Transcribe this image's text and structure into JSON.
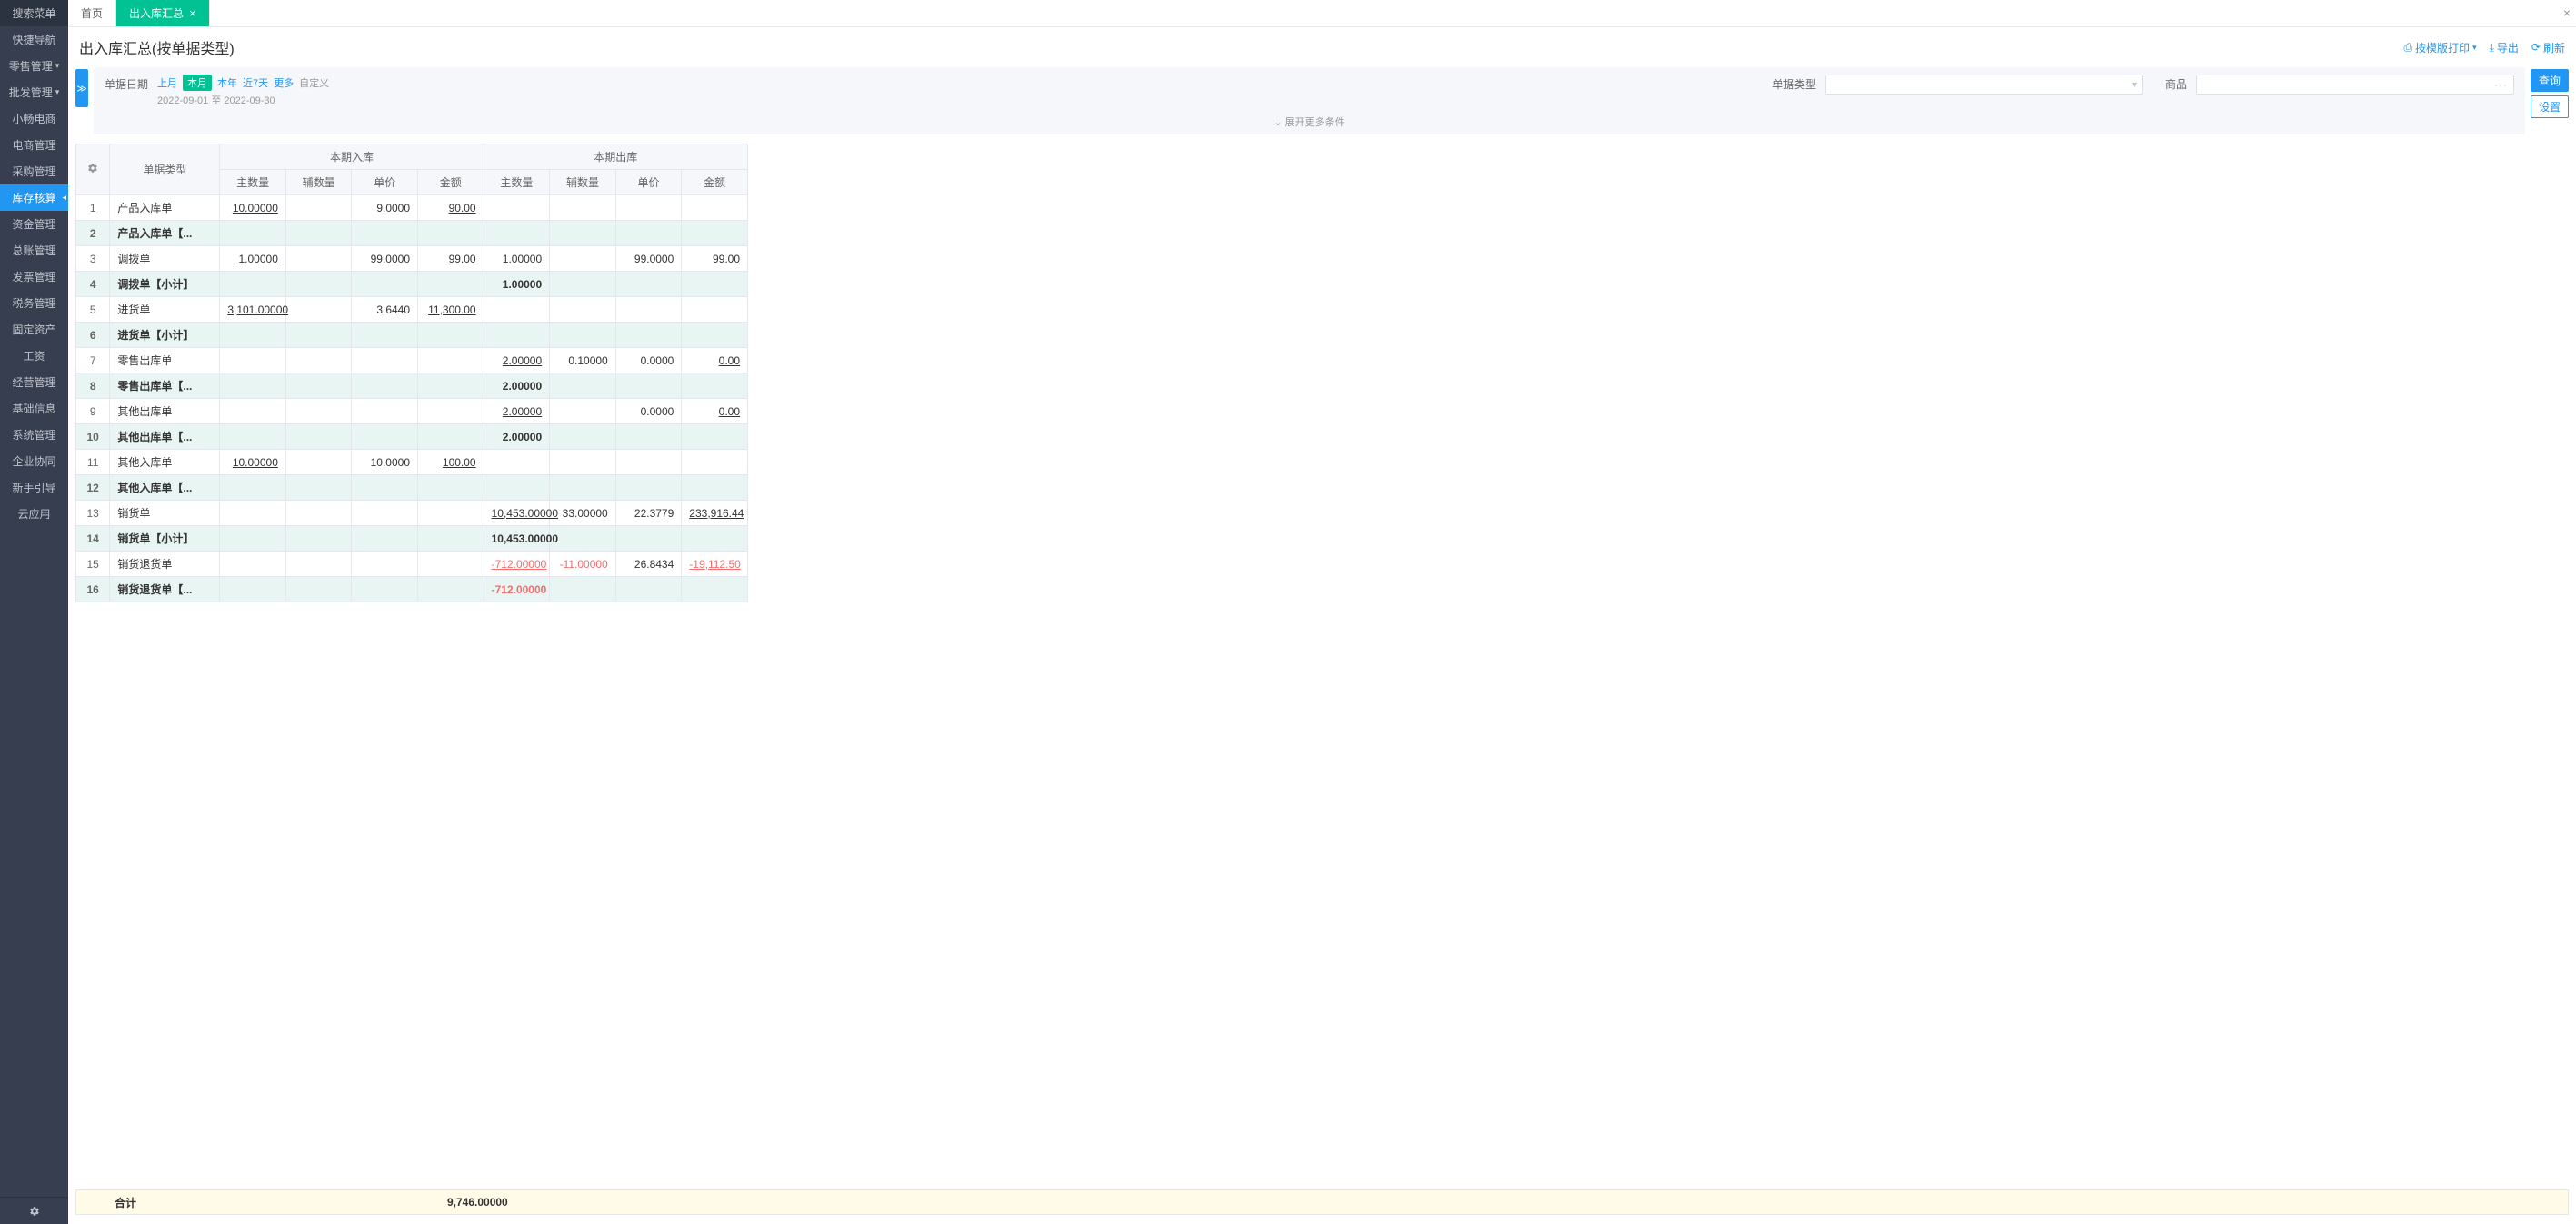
{
  "sidebar": {
    "items": [
      {
        "label": "搜索菜单",
        "hasDropdown": false
      },
      {
        "label": "快捷导航",
        "hasDropdown": false
      },
      {
        "label": "零售管理",
        "hasDropdown": true
      },
      {
        "label": "批发管理",
        "hasDropdown": true
      },
      {
        "label": "小畅电商",
        "hasDropdown": false
      },
      {
        "label": "电商管理",
        "hasDropdown": false
      },
      {
        "label": "采购管理",
        "hasDropdown": false
      },
      {
        "label": "库存核算",
        "hasDropdown": false,
        "active": true
      },
      {
        "label": "资金管理",
        "hasDropdown": false
      },
      {
        "label": "总账管理",
        "hasDropdown": false
      },
      {
        "label": "发票管理",
        "hasDropdown": false
      },
      {
        "label": "税务管理",
        "hasDropdown": false
      },
      {
        "label": "固定资产",
        "hasDropdown": false
      },
      {
        "label": "工资",
        "hasDropdown": false
      },
      {
        "label": "经营管理",
        "hasDropdown": false
      },
      {
        "label": "基础信息",
        "hasDropdown": false
      },
      {
        "label": "系统管理",
        "hasDropdown": false
      },
      {
        "label": "企业协同",
        "hasDropdown": false
      },
      {
        "label": "新手引导",
        "hasDropdown": false
      },
      {
        "label": "云应用",
        "hasDropdown": false
      }
    ]
  },
  "tabs": {
    "home": "首页",
    "active": "出入库汇总"
  },
  "page": {
    "title": "出入库汇总(按单据类型)",
    "actions": {
      "print": "按模版打印",
      "export": "导出",
      "refresh": "刷新"
    }
  },
  "filters": {
    "dateLabel": "单据日期",
    "dateOptions": {
      "lastMonth": "上月",
      "thisMonth": "本月",
      "thisYear": "本年",
      "recent7": "近7天",
      "more": "更多",
      "custom": "自定义"
    },
    "dateRange": "2022-09-01 至 2022-09-30",
    "docTypeLabel": "单据类型",
    "productLabel": "商品",
    "expandLabel": "展开更多条件",
    "searchBtn": "查询",
    "settingsBtn": "设置"
  },
  "table": {
    "headers": {
      "docType": "单据类型",
      "inbound": "本期入库",
      "outbound": "本期出库",
      "mainQty": "主数量",
      "auxQty": "辅数量",
      "price": "单价",
      "amount": "金额"
    },
    "rows": [
      {
        "idx": "1",
        "name": "产品入库单",
        "subtotal": false,
        "in_main": "10.00000",
        "in_main_u": true,
        "in_aux": "",
        "in_price": "9.0000",
        "in_amt": "90.00",
        "in_amt_u": true,
        "out_main": "",
        "out_aux": "",
        "out_price": "",
        "out_amt": ""
      },
      {
        "idx": "2",
        "name": "产品入库单【...",
        "subtotal": true,
        "in_main": "",
        "in_aux": "",
        "in_price": "",
        "in_amt": "",
        "out_main": "",
        "out_aux": "",
        "out_price": "",
        "out_amt": ""
      },
      {
        "idx": "3",
        "name": "调拨单",
        "subtotal": false,
        "in_main": "1.00000",
        "in_main_u": true,
        "in_aux": "",
        "in_price": "99.0000",
        "in_amt": "99.00",
        "in_amt_u": true,
        "out_main": "1.00000",
        "out_main_u": true,
        "out_aux": "",
        "out_price": "99.0000",
        "out_amt": "99.00",
        "out_amt_u": true
      },
      {
        "idx": "4",
        "name": "调拨单【小计】",
        "subtotal": true,
        "in_main": "",
        "in_aux": "",
        "in_price": "",
        "in_amt": "",
        "out_main": "1.00000",
        "out_aux": "",
        "out_price": "",
        "out_amt": ""
      },
      {
        "idx": "5",
        "name": "进货单",
        "subtotal": false,
        "in_main": "3,101.00000",
        "in_main_u": true,
        "in_aux": "",
        "in_price": "3.6440",
        "in_amt": "11,300.00",
        "in_amt_u": true,
        "out_main": "",
        "out_aux": "",
        "out_price": "",
        "out_amt": ""
      },
      {
        "idx": "6",
        "name": "进货单【小计】",
        "subtotal": true,
        "in_main": "",
        "in_aux": "",
        "in_price": "",
        "in_amt": "",
        "out_main": "",
        "out_aux": "",
        "out_price": "",
        "out_amt": ""
      },
      {
        "idx": "7",
        "name": "零售出库单",
        "subtotal": false,
        "in_main": "",
        "in_aux": "",
        "in_price": "",
        "in_amt": "",
        "out_main": "2.00000",
        "out_main_u": true,
        "out_aux": "0.10000",
        "out_price": "0.0000",
        "out_amt": "0.00",
        "out_amt_u": true
      },
      {
        "idx": "8",
        "name": "零售出库单【...",
        "subtotal": true,
        "in_main": "",
        "in_aux": "",
        "in_price": "",
        "in_amt": "",
        "out_main": "2.00000",
        "out_aux": "",
        "out_price": "",
        "out_amt": ""
      },
      {
        "idx": "9",
        "name": "其他出库单",
        "subtotal": false,
        "in_main": "",
        "in_aux": "",
        "in_price": "",
        "in_amt": "",
        "out_main": "2.00000",
        "out_main_u": true,
        "out_aux": "",
        "out_price": "0.0000",
        "out_amt": "0.00",
        "out_amt_u": true
      },
      {
        "idx": "10",
        "name": "其他出库单【...",
        "subtotal": true,
        "in_main": "",
        "in_aux": "",
        "in_price": "",
        "in_amt": "",
        "out_main": "2.00000",
        "out_aux": "",
        "out_price": "",
        "out_amt": ""
      },
      {
        "idx": "11",
        "name": "其他入库单",
        "subtotal": false,
        "in_main": "10.00000",
        "in_main_u": true,
        "in_aux": "",
        "in_price": "10.0000",
        "in_amt": "100.00",
        "in_amt_u": true,
        "out_main": "",
        "out_aux": "",
        "out_price": "",
        "out_amt": ""
      },
      {
        "idx": "12",
        "name": "其他入库单【...",
        "subtotal": true,
        "in_main": "",
        "in_aux": "",
        "in_price": "",
        "in_amt": "",
        "out_main": "",
        "out_aux": "",
        "out_price": "",
        "out_amt": ""
      },
      {
        "idx": "13",
        "name": "销货单",
        "subtotal": false,
        "in_main": "",
        "in_aux": "",
        "in_price": "",
        "in_amt": "",
        "out_main": "10,453.00000",
        "out_main_u": true,
        "out_aux": "33.00000",
        "out_price": "22.3779",
        "out_amt": "233,916.44",
        "out_amt_u": true
      },
      {
        "idx": "14",
        "name": "销货单【小计】",
        "subtotal": true,
        "in_main": "",
        "in_aux": "",
        "in_price": "",
        "in_amt": "",
        "out_main": "10,453.00000",
        "out_aux": "",
        "out_price": "",
        "out_amt": ""
      },
      {
        "idx": "15",
        "name": "销货退货单",
        "subtotal": false,
        "neg": true,
        "in_main": "",
        "in_aux": "",
        "in_price": "",
        "in_amt": "",
        "out_main": "-712.00000",
        "out_main_u": true,
        "out_aux": "-11.00000",
        "out_price": "26.8434",
        "out_amt": "-19,112.50",
        "out_amt_u": true
      },
      {
        "idx": "16",
        "name": "销货退货单【...",
        "subtotal": true,
        "neg": true,
        "in_main": "",
        "in_aux": "",
        "in_price": "",
        "in_amt": "",
        "out_main": "-712.00000",
        "out_aux": "",
        "out_price": "",
        "out_amt": ""
      }
    ],
    "total": {
      "label": "合计",
      "out_main": "9,746.00000"
    }
  },
  "colors": {
    "sidebar_bg": "#363e4f",
    "accent_blue": "#2196f3",
    "accent_green": "#00c292",
    "subtotal_bg": "#e8f5f3",
    "total_bg": "#fffbe6",
    "negative": "#f56c6c",
    "border": "#e4e7ed"
  }
}
